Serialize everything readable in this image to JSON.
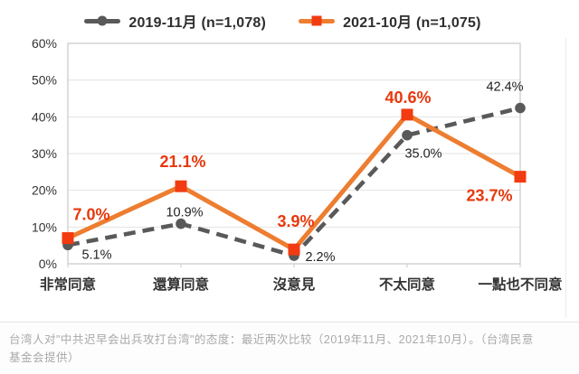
{
  "chart_data": {
    "type": "line",
    "title": "",
    "categories": [
      "非常同意",
      "還算同意",
      "沒意見",
      "不太同意",
      "一點也不同意"
    ],
    "series": [
      {
        "name": "2019-11月  (n=1,078)",
        "values": [
          5.1,
          10.9,
          2.2,
          35.0,
          42.4
        ],
        "data_labels": [
          "5.1%",
          "10.9%",
          "2.2%",
          "35.0%",
          "42.4%"
        ],
        "marker": "circle",
        "line_style": "dashed"
      },
      {
        "name": "2021-10月  (n=1,075)",
        "values": [
          7.0,
          21.1,
          3.9,
          40.6,
          23.7
        ],
        "data_labels": [
          "7.0%",
          "21.1%",
          "3.9%",
          "40.6%",
          "23.7%"
        ],
        "marker": "square",
        "line_style": "solid"
      }
    ],
    "xlabel": "",
    "ylabel": "",
    "ylim": [
      0,
      60
    ],
    "yticks": [
      "0%",
      "10%",
      "20%",
      "30%",
      "40%",
      "50%",
      "60%"
    ],
    "grid": true,
    "legend_position": "top"
  },
  "colors": {
    "series_2019": "#595959",
    "series_2021_line": "#ED7D31",
    "series_2021_marker": "#F23B10",
    "label_2019": "#1f1f1f",
    "label_2021": "#E8380D",
    "axis_text": "#333333",
    "grid": "#E3E3E3",
    "plot_border": "#C9C9C9",
    "page_edge": "#ECECEC",
    "caption_text": "#A9A9A9"
  },
  "caption": "台湾人对\"中共迟早会出兵攻打台湾\"的态度：最近两次比较（2019年11月、2021年10月）。（台湾民意基金会提供）"
}
